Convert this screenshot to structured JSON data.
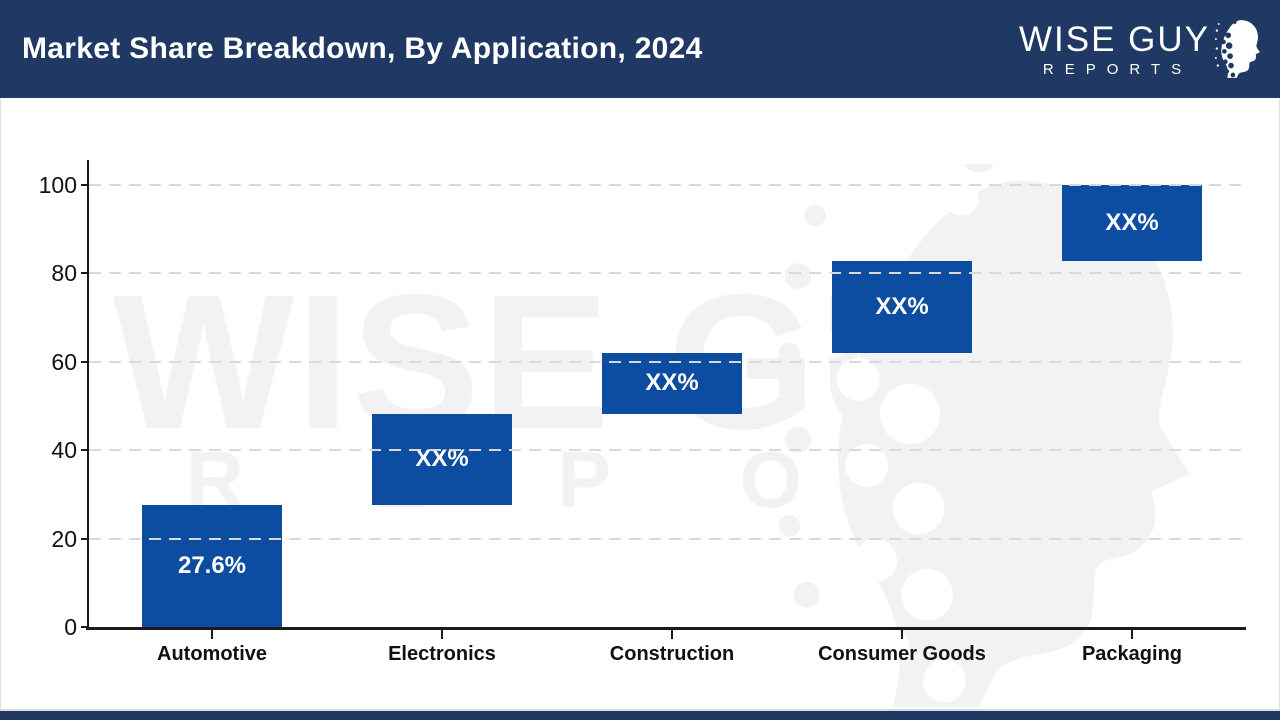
{
  "header": {
    "title": "Market Share Breakdown, By Application, 2024",
    "logo": {
      "line1": "WISE GUY",
      "line2": "REPORTS"
    }
  },
  "watermark": {
    "line1": "WISE GUY",
    "line2": "R E P O R T S"
  },
  "colors": {
    "header_bg": "#1f3864",
    "footer_bg": "#1f3864",
    "bar": "#0c4da2",
    "bar_label_text": "#ffffff",
    "gridline": "#d9d9d9",
    "axis": "#1b1b1b",
    "tick_text": "#111111",
    "watermark": "#f2f2f4"
  },
  "chart_data": {
    "type": "bar",
    "subtype": "waterfall",
    "title": "Market Share Breakdown, By Application, 2024",
    "categories": [
      "Automotive",
      "Electronics",
      "Construction",
      "Consumer Goods",
      "Packaging"
    ],
    "segments": [
      {
        "category": "Automotive",
        "start": 0,
        "end": 27.6,
        "label": "27.6%"
      },
      {
        "category": "Electronics",
        "start": 27.6,
        "end": 48.3,
        "label": "XX%"
      },
      {
        "category": "Construction",
        "start": 48.3,
        "end": 62.1,
        "label": "XX%"
      },
      {
        "category": "Consumer Goods",
        "start": 62.1,
        "end": 82.7,
        "label": "XX%"
      },
      {
        "category": "Packaging",
        "start": 82.7,
        "end": 100,
        "label": "XX%"
      }
    ],
    "yticks": [
      0,
      20,
      40,
      60,
      80,
      100
    ],
    "ylim": [
      0,
      100
    ],
    "xlabel": "",
    "ylabel": "",
    "grid": "horizontal-dashed",
    "grid_above_bars": true,
    "legend": "none"
  }
}
